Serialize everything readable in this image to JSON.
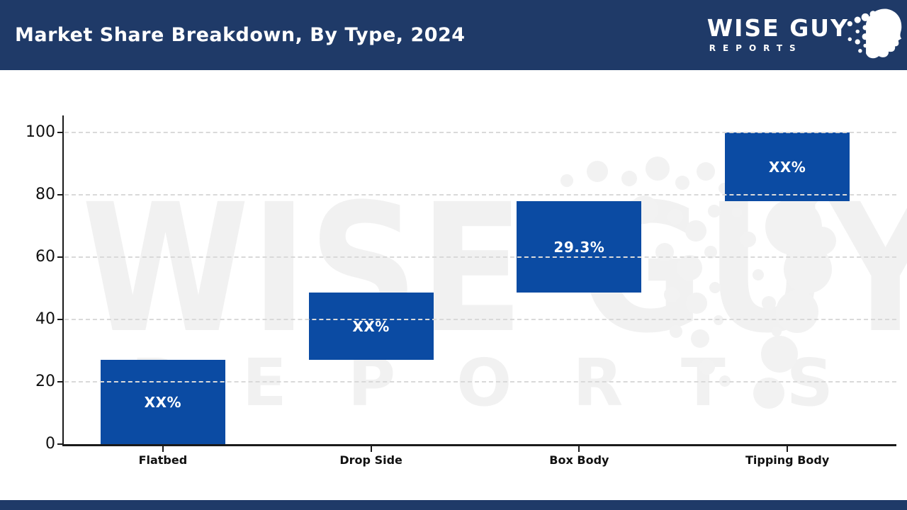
{
  "header": {
    "title": "Market Share Breakdown, By Type, 2024",
    "logo": {
      "wordmark": "WISE GUY",
      "subtitle": "REPORTS"
    }
  },
  "watermark": {
    "line1": "WISE GUY",
    "line2": "REPORTS"
  },
  "chart_data": {
    "type": "bar",
    "subtype": "floating-waterfall",
    "title": "Market Share Breakdown, By Type, 2024",
    "categories": [
      "Flatbed",
      "Drop Side",
      "Box Body",
      "Tipping Body"
    ],
    "series": [
      {
        "name": "Market share (%)",
        "segments": [
          {
            "category": "Flatbed",
            "start": 0,
            "end": 27,
            "label": "XX%"
          },
          {
            "category": "Drop Side",
            "start": 27,
            "end": 48.6,
            "label": "XX%"
          },
          {
            "category": "Box Body",
            "start": 48.6,
            "end": 77.9,
            "label": "29.3%"
          },
          {
            "category": "Tipping Body",
            "start": 77.9,
            "end": 100,
            "label": "XX%"
          }
        ]
      }
    ],
    "ylim": [
      0,
      100
    ],
    "yticks": [
      0,
      20,
      40,
      60,
      80,
      100
    ],
    "grid": "horizontal-dashed",
    "legend": "none",
    "bar_color": "#0B4BA3",
    "bar_label_color": "#FFFFFF"
  },
  "colors": {
    "header_bg": "#1F3A68",
    "footer_bg": "#1F3A68",
    "bar": "#0B4BA3",
    "grid": "#D9D9D9",
    "axis": "#1A1A1A",
    "watermark": "#F1F1F1",
    "page_bg": "#FFFFFF"
  }
}
